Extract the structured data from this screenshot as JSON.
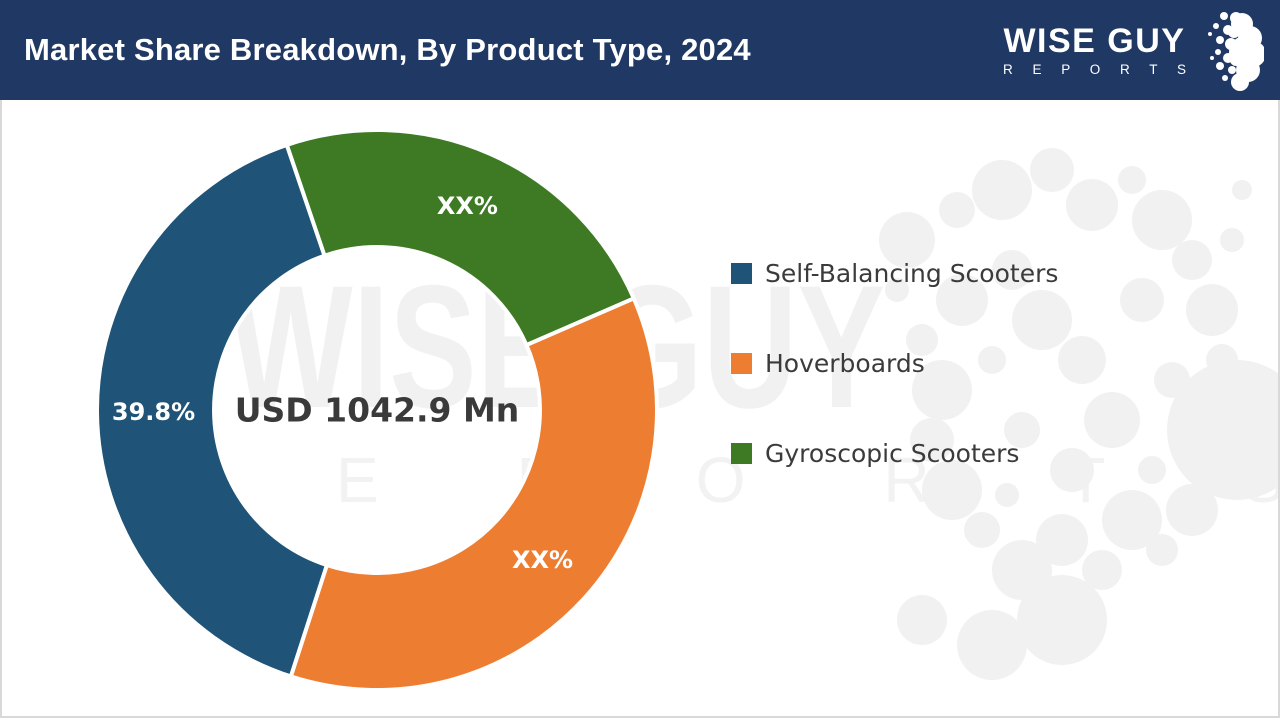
{
  "header": {
    "title": "Market Share Breakdown, By Product Type, 2024",
    "bg_color": "#203864",
    "logo": {
      "primary": "WISE GUY",
      "secondary": "R E P O R T S"
    }
  },
  "chart_data": {
    "type": "pie",
    "donut": true,
    "title": "Market Share Breakdown, By Product Type, 2024",
    "center_label": "USD 1042.9 Mn",
    "legend_position": "right",
    "start_angle_deg": -18.8,
    "inner_radius_ratio": 0.582,
    "draw_order": [
      2,
      1,
      0
    ],
    "series": [
      {
        "name": "Self-Balancing Scooters",
        "value": 39.8,
        "label": "39.8%",
        "color": "#1F5377"
      },
      {
        "name": "Hoverboards",
        "value": 36.5,
        "label": "XX%",
        "color": "#ED7D31"
      },
      {
        "name": "Gyroscopic Scooters",
        "value": 23.7,
        "label": "XX%",
        "color": "#3D7A23"
      }
    ]
  },
  "watermark": {
    "primary": "WISE GUY",
    "secondary": "REPORTS"
  }
}
